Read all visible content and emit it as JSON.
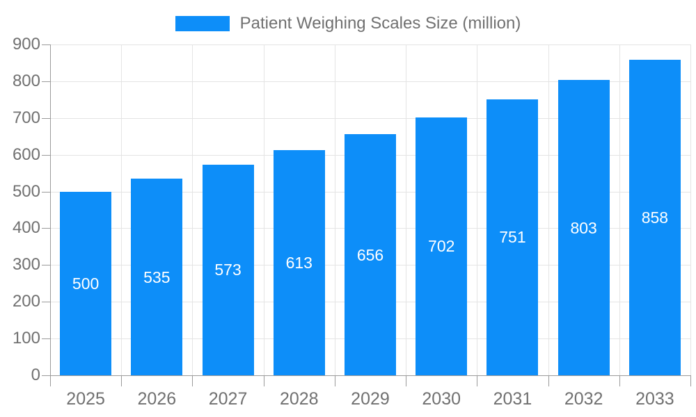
{
  "chart_data": {
    "type": "bar",
    "title": "Patient Weighing Scales Size (million)",
    "categories": [
      "2025",
      "2026",
      "2027",
      "2028",
      "2029",
      "2030",
      "2031",
      "2032",
      "2033"
    ],
    "values": [
      500,
      535,
      573,
      613,
      656,
      702,
      751,
      803,
      858
    ],
    "xlabel": "",
    "ylabel": "",
    "ylim": [
      0,
      900
    ],
    "ytick_step": 100,
    "grid": true,
    "legend_position": "top-center",
    "colors": {
      "bar": "#0d8ef9",
      "value_label": "#ffffff",
      "axis_text": "#707070",
      "axis_line": "#9a9a9a",
      "gridline": "#e4e4e4",
      "background": "#ffffff"
    }
  }
}
